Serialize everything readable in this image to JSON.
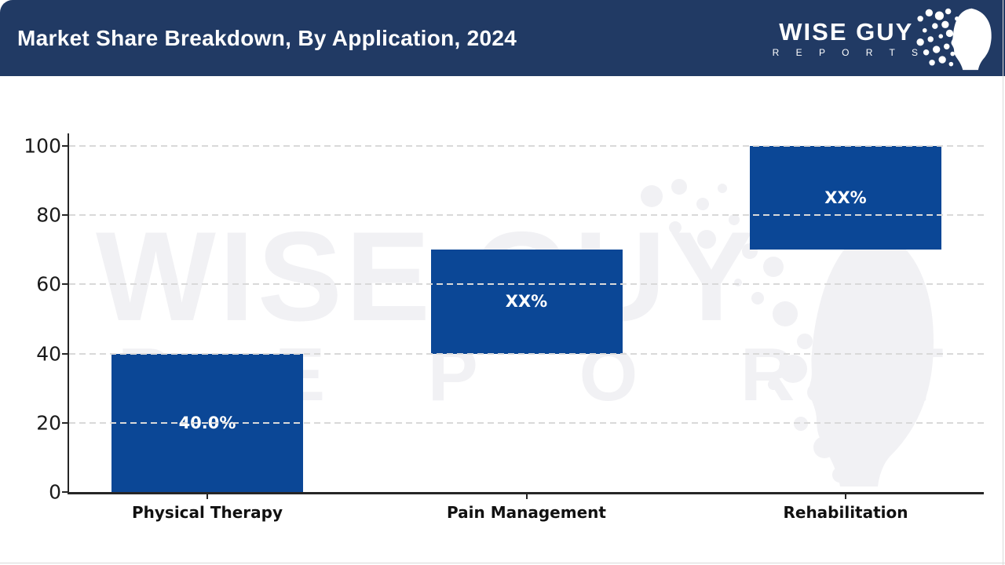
{
  "header": {
    "title": "Market Share Breakdown, By Application, 2024",
    "logo": {
      "line1": "WISE GUY",
      "line2": "R E P O R T S"
    }
  },
  "watermark": {
    "line1": "WISE GUY",
    "line2": "R E P O R T S"
  },
  "chart_data": {
    "type": "bar",
    "variant": "floating-segment",
    "title": "Market Share Breakdown, By Application, 2024",
    "categories": [
      "Physical Therapy",
      "Pain Management",
      "Rehabilitation"
    ],
    "bars": [
      {
        "category": "Physical Therapy",
        "from": 0,
        "to": 40,
        "label": "40.0%"
      },
      {
        "category": "Pain Management",
        "from": 40,
        "to": 70,
        "label": "XX%"
      },
      {
        "category": "Rehabilitation",
        "from": 70,
        "to": 100,
        "label": "XX%"
      }
    ],
    "yticks": [
      0,
      20,
      40,
      60,
      80,
      100
    ],
    "ylim": [
      0,
      104
    ],
    "xlabel": "",
    "ylabel": "",
    "grid": "horizontal-dashed",
    "legend": "none"
  },
  "colors": {
    "header_bg": "#213a64",
    "title_text": "#ffffff",
    "bar": "#0b4796",
    "bar_label": "#ffffff",
    "grid": "#d9d9d9",
    "axis": "#262626",
    "watermark": "#f1f1f4",
    "frame": "#d9d9d9"
  }
}
